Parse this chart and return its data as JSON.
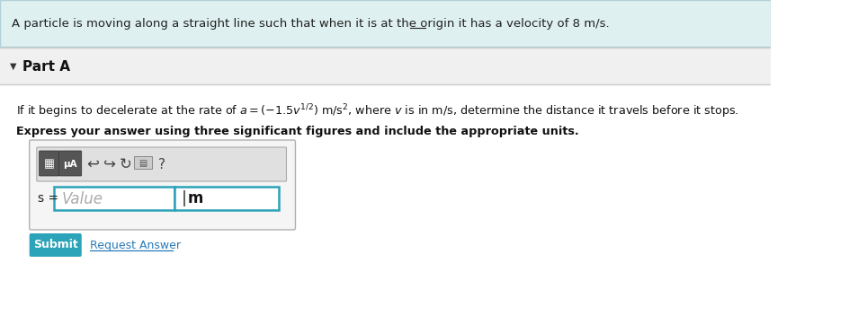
{
  "header_text": "A particle is moving along a straight line such that when it is at the origin it has a velocity of 8 m/s.",
  "header_bg": "#dff0f0",
  "header_border": "#b0d0d8",
  "part_label": "Part A",
  "part_bg": "#f0f0f0",
  "part_border": "#cccccc",
  "body_bg": "#ffffff",
  "bold_text": "Express your answer using three significant figures and include the appropriate units.",
  "input_label": "s =",
  "input_placeholder": "Value",
  "input_unit": "m",
  "submit_text": "Submit",
  "submit_bg": "#2ba3b8",
  "submit_text_color": "#ffffff",
  "request_answer_text": "Request Answer",
  "request_answer_color": "#2a7ab8",
  "toolbar_bg": "#e0e0e0",
  "input_border": "#2ba3b8",
  "outer_box_border": "#b0b0b0",
  "outer_box_bg": "#f5f5f5"
}
